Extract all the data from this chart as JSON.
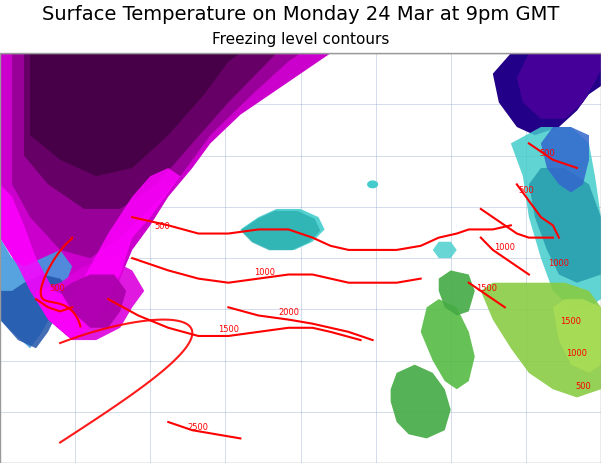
{
  "title": "Surface Temperature on Monday 24 Mar at 9pm GMT",
  "subtitle": "Freezing level contours",
  "title_fontsize": 14,
  "subtitle_fontsize": 11,
  "fig_width": 6.01,
  "fig_height": 4.63,
  "background_color": "#ffffff",
  "header_bg": "#ffffff",
  "map_bg": "#c8d8f0",
  "border_color": "#999999"
}
